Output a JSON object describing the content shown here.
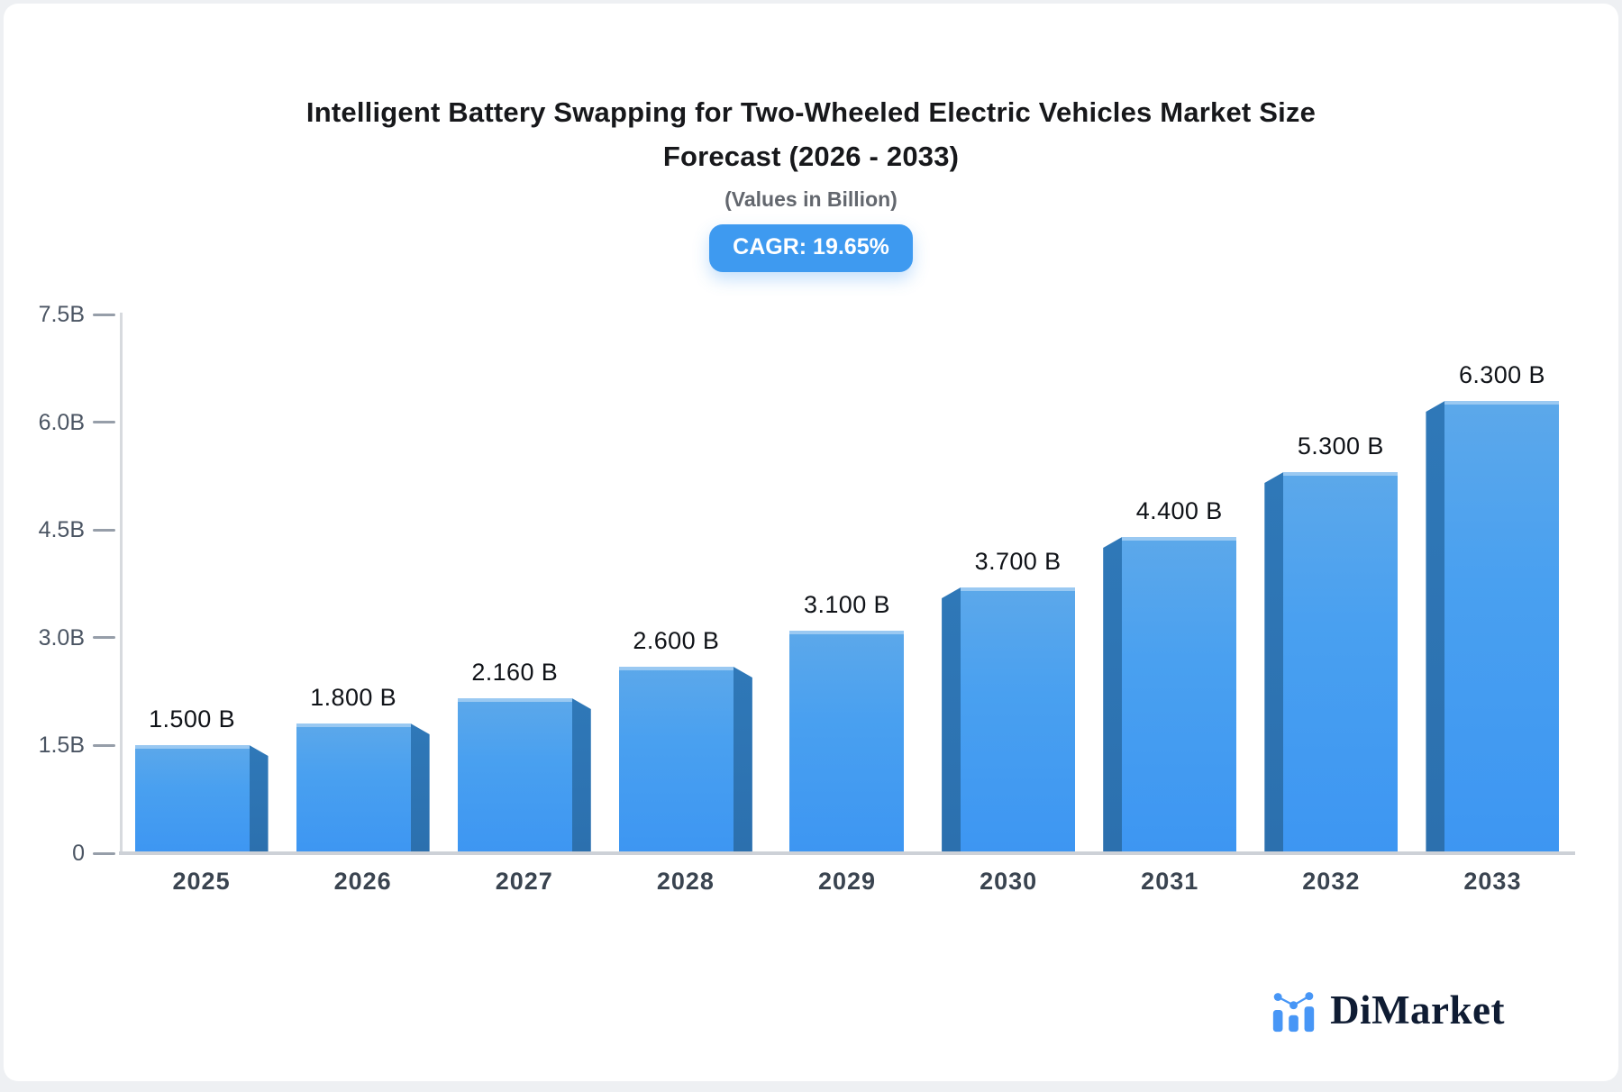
{
  "header": {
    "title_line1": "Intelligent Battery Swapping for Two-Wheeled Electric Vehicles Market Size",
    "title_line2": "Forecast (2026 - 2033)",
    "subtitle": "(Values in Billion)",
    "cagr_badge": "CAGR: 19.65%"
  },
  "chart_data": {
    "type": "bar",
    "title": "Intelligent Battery Swapping for Two-Wheeled Electric Vehicles Market Size Forecast (2026 - 2033)",
    "subtitle": "(Values in Billion)",
    "cagr": "19.65%",
    "categories": [
      "2025",
      "2026",
      "2027",
      "2028",
      "2029",
      "2030",
      "2031",
      "2032",
      "2033"
    ],
    "values": [
      1.5,
      1.8,
      2.16,
      2.6,
      3.1,
      3.7,
      4.4,
      5.3,
      6.3
    ],
    "value_labels": [
      "1.500 B",
      "1.800 B",
      "2.160 B",
      "2.600 B",
      "3.100 B",
      "3.700 B",
      "4.400 B",
      "5.300 B",
      "6.300 B"
    ],
    "xlabel": "",
    "ylabel": "",
    "ylim": [
      0,
      7.5
    ],
    "yticks": [
      "7.5B",
      "6.0B",
      "4.5B",
      "3.0B",
      "1.5B",
      "0"
    ],
    "ytick_values": [
      7.5,
      6.0,
      4.5,
      3.0,
      1.5,
      0
    ],
    "grid": false,
    "legend": false,
    "colors": {
      "bar_face_top": "#5ca8ea",
      "bar_face_bottom": "#3d96f2",
      "bar_side": "#2d73b2",
      "badge_background": "#3e9af0",
      "axis_line": "#d7dade",
      "tick_text": "#4b5563",
      "category_text": "#3a4450",
      "value_text": "#101318"
    }
  },
  "footer": {
    "brand": "DiMarket",
    "brand_color": "#0f1c33",
    "logo_icon": "bar-chart-logo-icon",
    "logo_icon_color": "#4796f6"
  }
}
